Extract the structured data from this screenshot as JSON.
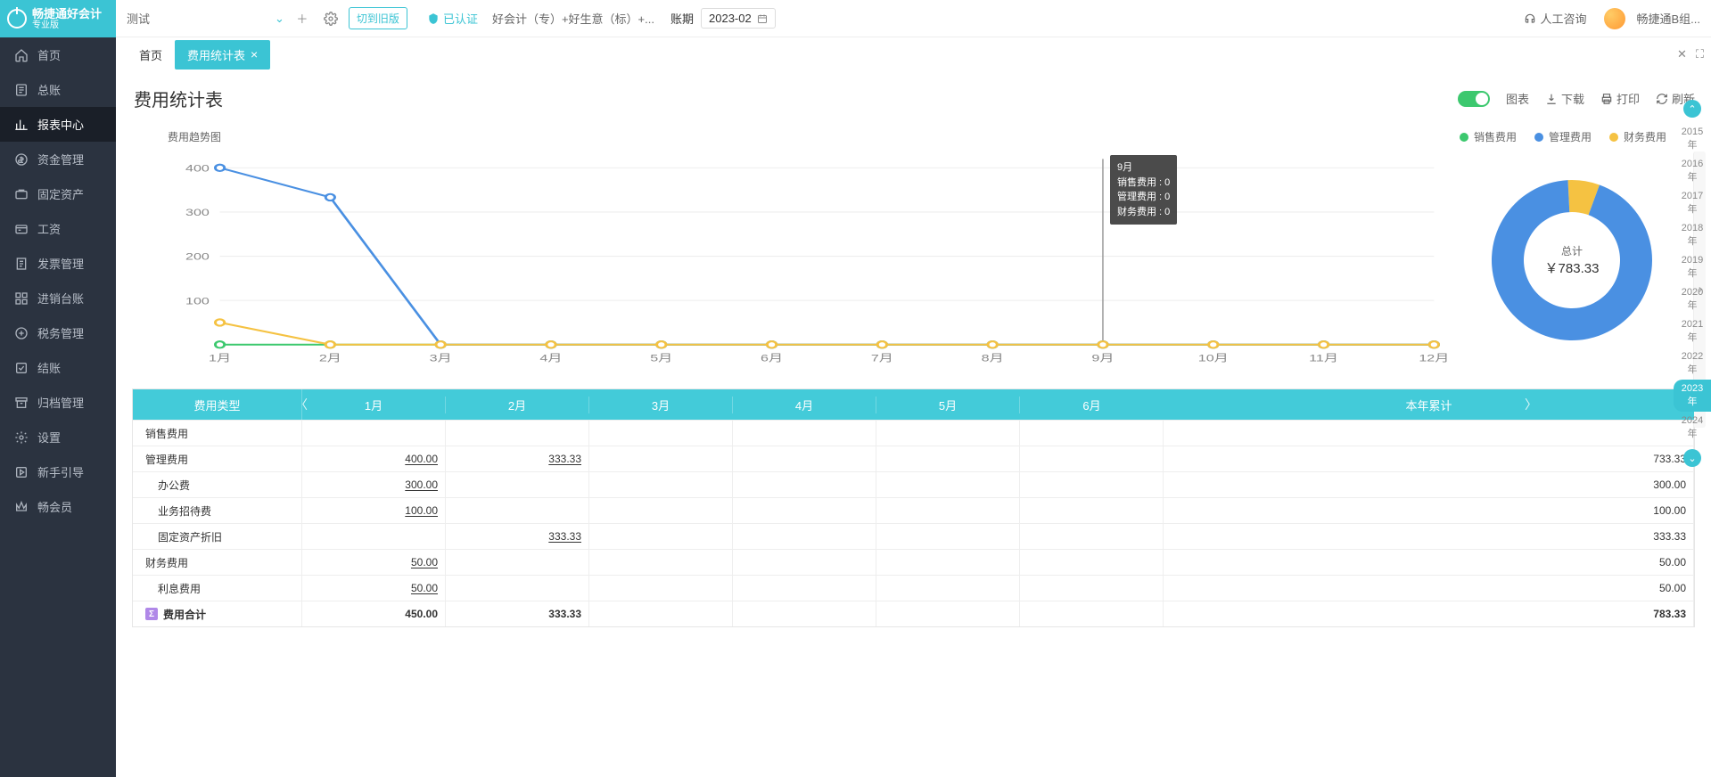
{
  "brand": {
    "name": "畅捷通好会计",
    "edition": "专业版"
  },
  "sidebar": {
    "items": [
      {
        "label": "首页",
        "icon": "home"
      },
      {
        "label": "总账",
        "icon": "ledger"
      },
      {
        "label": "报表中心",
        "icon": "report",
        "active": true
      },
      {
        "label": "资金管理",
        "icon": "fund"
      },
      {
        "label": "固定资产",
        "icon": "asset"
      },
      {
        "label": "工资",
        "icon": "salary"
      },
      {
        "label": "发票管理",
        "icon": "invoice"
      },
      {
        "label": "进销台账",
        "icon": "stock"
      },
      {
        "label": "税务管理",
        "icon": "tax"
      },
      {
        "label": "结账",
        "icon": "close"
      },
      {
        "label": "归档管理",
        "icon": "archive"
      },
      {
        "label": "设置",
        "icon": "gear"
      },
      {
        "label": "新手引导",
        "icon": "guide"
      },
      {
        "label": "畅会员",
        "icon": "vip"
      }
    ]
  },
  "topbar": {
    "company": "测试",
    "switch_old": "切到旧版",
    "cert": "已认证",
    "package": "好会计（专）+好生意（标）+...",
    "period_label": "账期",
    "period_value": "2023-02",
    "helpdesk": "人工咨询",
    "username": "畅捷通B组..."
  },
  "tabs": [
    {
      "label": "首页",
      "active": false,
      "closable": false
    },
    {
      "label": "费用统计表",
      "active": true,
      "closable": true
    }
  ],
  "page": {
    "title": "费用统计表",
    "actions": {
      "chart_toggle": "图表",
      "download": "下载",
      "print": "打印",
      "refresh": "刷新"
    }
  },
  "trend_chart": {
    "title": "费用趋势图",
    "type": "line",
    "x_labels": [
      "1月",
      "2月",
      "3月",
      "4月",
      "5月",
      "6月",
      "7月",
      "8月",
      "9月",
      "10月",
      "11月",
      "12月"
    ],
    "y_ticks": [
      100,
      200,
      300,
      400
    ],
    "ylim": [
      0,
      420
    ],
    "series": [
      {
        "name": "销售费用",
        "color": "#3cc86e",
        "data": [
          0,
          0,
          0,
          0,
          0,
          0,
          0,
          0,
          0,
          0,
          0,
          0
        ],
        "marker": "circle"
      },
      {
        "name": "管理费用",
        "color": "#4a90e2",
        "data": [
          400,
          333.33,
          0,
          0,
          0,
          0,
          0,
          0,
          0,
          0,
          0,
          0
        ],
        "marker": "circle"
      },
      {
        "name": "财务费用",
        "color": "#f5c242",
        "data": [
          50,
          0,
          0,
          0,
          0,
          0,
          0,
          0,
          0,
          0,
          0,
          0
        ],
        "marker": "circle"
      }
    ],
    "tooltip": {
      "month_index": 8,
      "lines": [
        "9月",
        "销售费用 : 0",
        "管理费用 : 0",
        "财务费用 : 0"
      ]
    },
    "grid_color": "#eeeeee",
    "axis_color": "#cccccc",
    "tick_font_size": 11
  },
  "donut": {
    "label": "总计",
    "value": "￥783.33",
    "colors": {
      "sales": "#3cc86e",
      "mgmt": "#4a90e2",
      "fin": "#f5c242"
    },
    "slices": [
      {
        "key": "fin",
        "value": 50,
        "color": "#f5c242"
      },
      {
        "key": "mgmt",
        "value": 733.33,
        "color": "#4a90e2"
      },
      {
        "key": "sales",
        "value": 0,
        "color": "#3cc86e"
      }
    ],
    "inner_ratio": 0.6
  },
  "legend": [
    {
      "label": "销售费用",
      "color": "#3cc86e"
    },
    {
      "label": "管理费用",
      "color": "#4a90e2"
    },
    {
      "label": "财务费用",
      "color": "#f5c242"
    }
  ],
  "year_rail": {
    "years": [
      "2015年",
      "2016年",
      "2017年",
      "2018年",
      "2019年",
      "2020年",
      "2021年",
      "2022年",
      "2023年",
      "2024年"
    ],
    "active": "2023年"
  },
  "table": {
    "header": {
      "type": "费用类型",
      "months": [
        "1月",
        "2月",
        "3月",
        "4月",
        "5月",
        "6月"
      ],
      "total": "本年累计"
    },
    "rows": [
      {
        "label": "销售费用",
        "indent": 0,
        "cells": [
          "",
          "",
          "",
          "",
          "",
          ""
        ],
        "total": "",
        "underlined": false
      },
      {
        "label": "管理费用",
        "indent": 0,
        "cells": [
          "400.00",
          "333.33",
          "",
          "",
          "",
          ""
        ],
        "total": "733.33",
        "underlined": true
      },
      {
        "label": "办公费",
        "indent": 1,
        "cells": [
          "300.00",
          "",
          "",
          "",
          "",
          ""
        ],
        "total": "300.00",
        "underlined": true
      },
      {
        "label": "业务招待费",
        "indent": 1,
        "cells": [
          "100.00",
          "",
          "",
          "",
          "",
          ""
        ],
        "total": "100.00",
        "underlined": true
      },
      {
        "label": "固定资产折旧",
        "indent": 1,
        "cells": [
          "",
          "333.33",
          "",
          "",
          "",
          ""
        ],
        "total": "333.33",
        "underlined": true
      },
      {
        "label": "财务费用",
        "indent": 0,
        "cells": [
          "50.00",
          "",
          "",
          "",
          "",
          ""
        ],
        "total": "50.00",
        "underlined": true
      },
      {
        "label": "利息费用",
        "indent": 1,
        "cells": [
          "50.00",
          "",
          "",
          "",
          "",
          ""
        ],
        "total": "50.00",
        "underlined": true
      }
    ],
    "total_row": {
      "label": "费用合计",
      "cells": [
        "450.00",
        "333.33",
        "",
        "",
        "",
        ""
      ],
      "total": "783.33"
    }
  }
}
